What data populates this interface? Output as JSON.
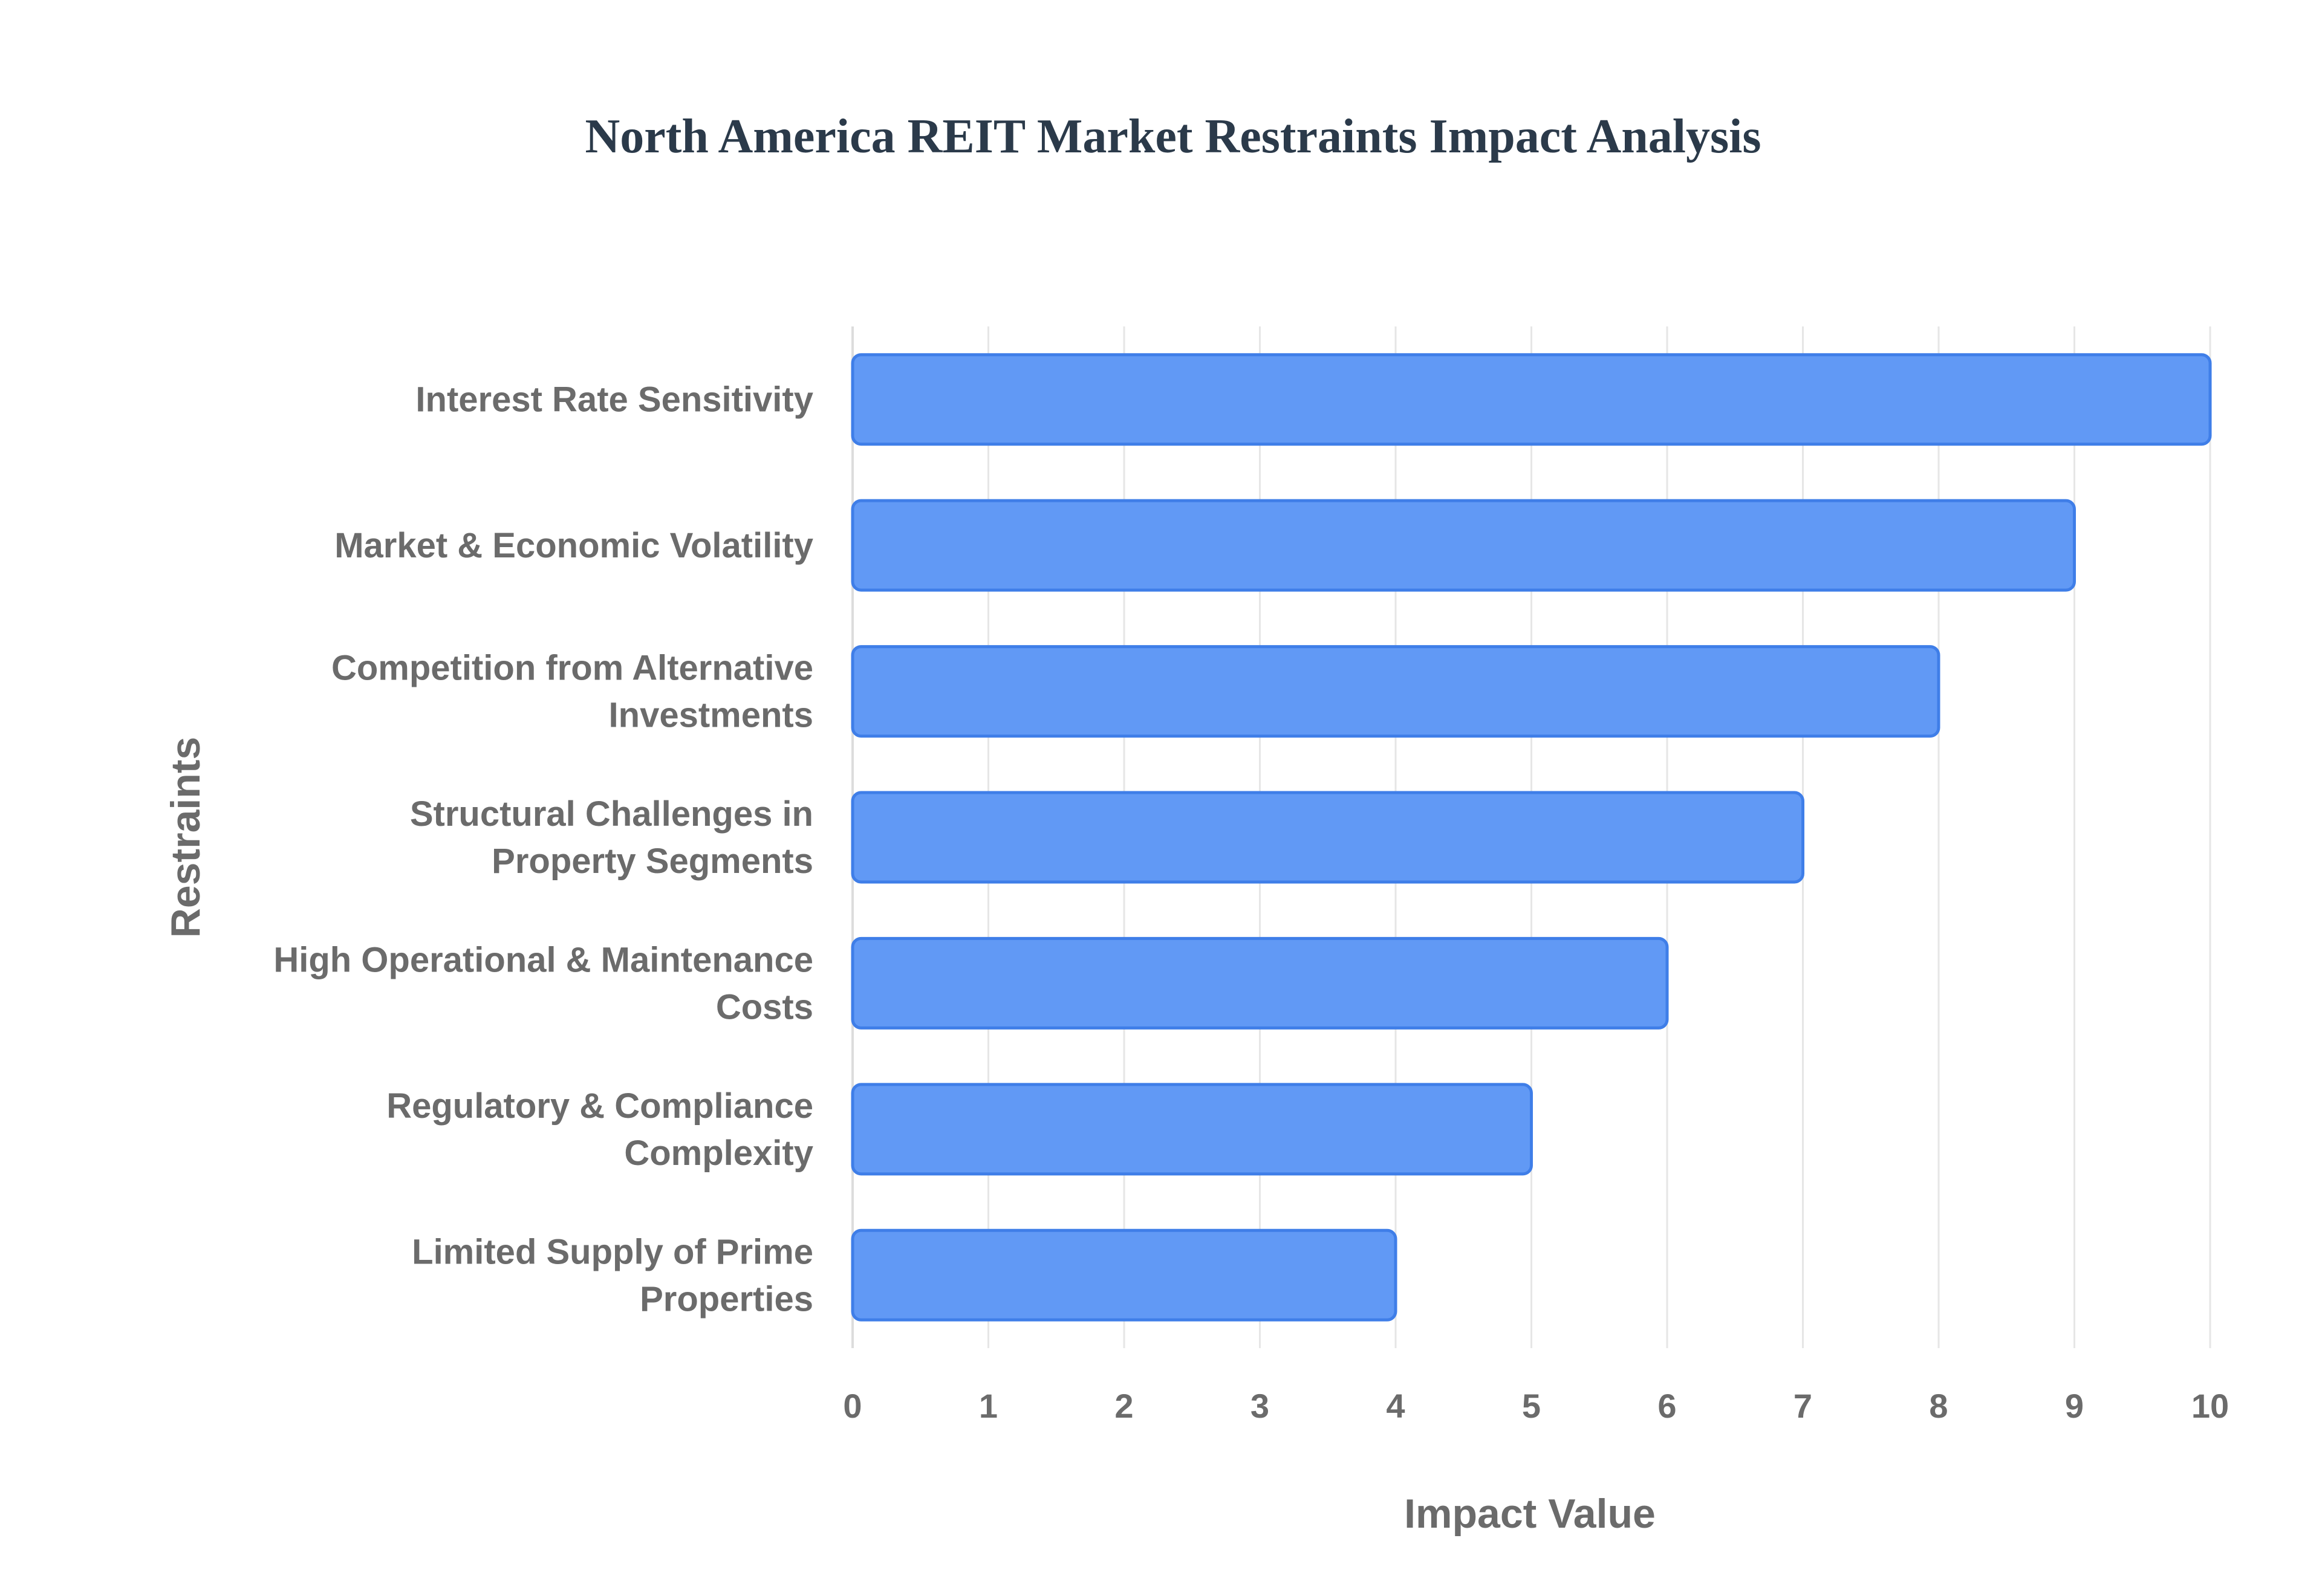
{
  "chart_data": {
    "type": "bar",
    "orientation": "horizontal",
    "title": "North America REIT Market Restraints Impact Analysis",
    "xlabel": "Impact Value",
    "ylabel": "Restraints",
    "xlim": [
      0,
      10
    ],
    "x_ticks": [
      "0",
      "1",
      "2",
      "3",
      "4",
      "5",
      "6",
      "7",
      "8",
      "9",
      "10"
    ],
    "grid": true,
    "legend": "none",
    "bar_color": "#6199f5",
    "bar_edge_color": "#3f7ee8",
    "categories": [
      [
        "Interest Rate Sensitivity"
      ],
      [
        "Market & Economic Volatility"
      ],
      [
        "Competition from Alternative",
        "Investments"
      ],
      [
        "Structural Challenges in",
        "Property Segments"
      ],
      [
        "High Operational & Maintenance",
        "Costs"
      ],
      [
        "Regulatory & Compliance",
        "Complexity"
      ],
      [
        "Limited Supply of Prime",
        "Properties"
      ]
    ],
    "values": [
      10,
      9,
      8,
      7,
      6,
      5,
      4
    ]
  }
}
